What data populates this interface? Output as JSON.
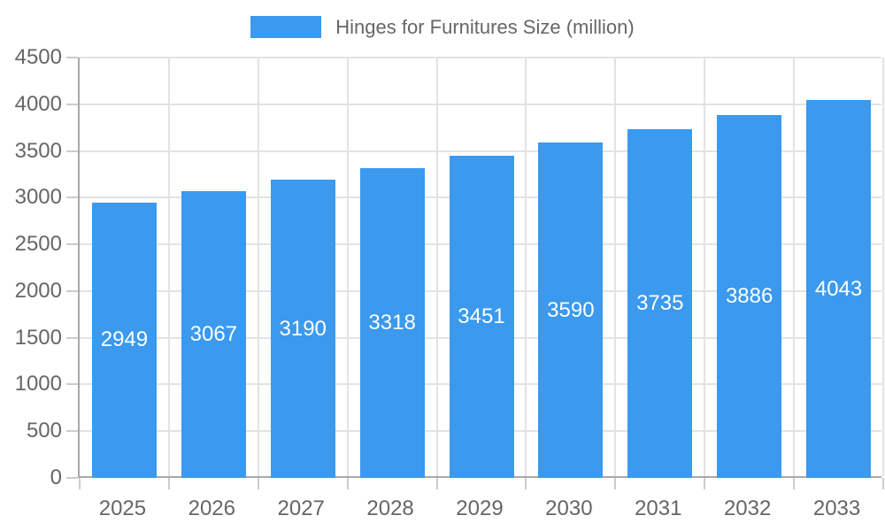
{
  "chart_data": {
    "type": "bar",
    "legend_label": "Hinges for Furnitures Size (million)",
    "legend_position": "top",
    "categories": [
      "2025",
      "2026",
      "2027",
      "2028",
      "2029",
      "2030",
      "2031",
      "2032",
      "2033"
    ],
    "values": [
      2949,
      3067,
      3190,
      3318,
      3451,
      3590,
      3735,
      3886,
      4043
    ],
    "xlabel": "",
    "ylabel": "",
    "ylim": [
      0,
      4500
    ],
    "ytick_step": 500,
    "yticks": [
      0,
      500,
      1000,
      1500,
      2000,
      2500,
      3000,
      3500,
      4000,
      4500
    ],
    "grid": true,
    "bar_labels_visible": true,
    "colors": {
      "bar": "#3b99ee",
      "bar_label": "#ffffff",
      "grid": "#e3e3e3",
      "axis": "#a9a9a9",
      "tick": "#cccccc",
      "text": "#666666"
    }
  }
}
